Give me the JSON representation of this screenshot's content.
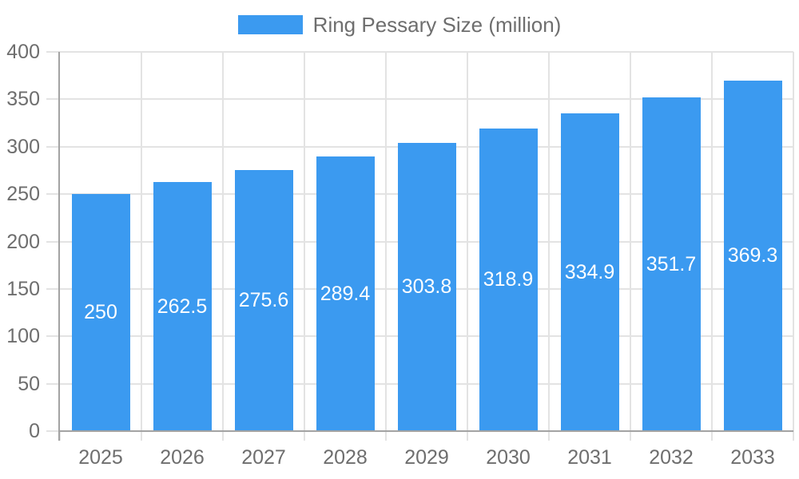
{
  "chart_data": {
    "type": "bar",
    "categories": [
      "2025",
      "2026",
      "2027",
      "2028",
      "2029",
      "2030",
      "2031",
      "2032",
      "2033"
    ],
    "series": [
      {
        "name": "Ring Pessary Size (million)",
        "values": [
          250,
          262.5,
          275.6,
          289.4,
          303.8,
          318.9,
          334.9,
          351.7,
          369.3
        ],
        "labels": [
          "250",
          "262.5",
          "275.6",
          "289.4",
          "303.8",
          "318.9",
          "334.9",
          "351.7",
          "369.3"
        ]
      }
    ],
    "xlabel": "",
    "ylabel": "",
    "ylim": [
      0,
      400
    ],
    "yticks": [
      0,
      50,
      100,
      150,
      200,
      250,
      300,
      350,
      400
    ],
    "grid": true,
    "legend_position": "top-center",
    "bar_label_position": "inside-center",
    "colors": {
      "bar": "#3B9AF0",
      "bar_label": "#FFFFFF",
      "grid_line": "#E3E3E3",
      "axis_line": "#A3A3A3",
      "tick_label": "#6E6E6E",
      "legend_text": "#6E6E6E",
      "background": "#FFFFFF"
    }
  }
}
